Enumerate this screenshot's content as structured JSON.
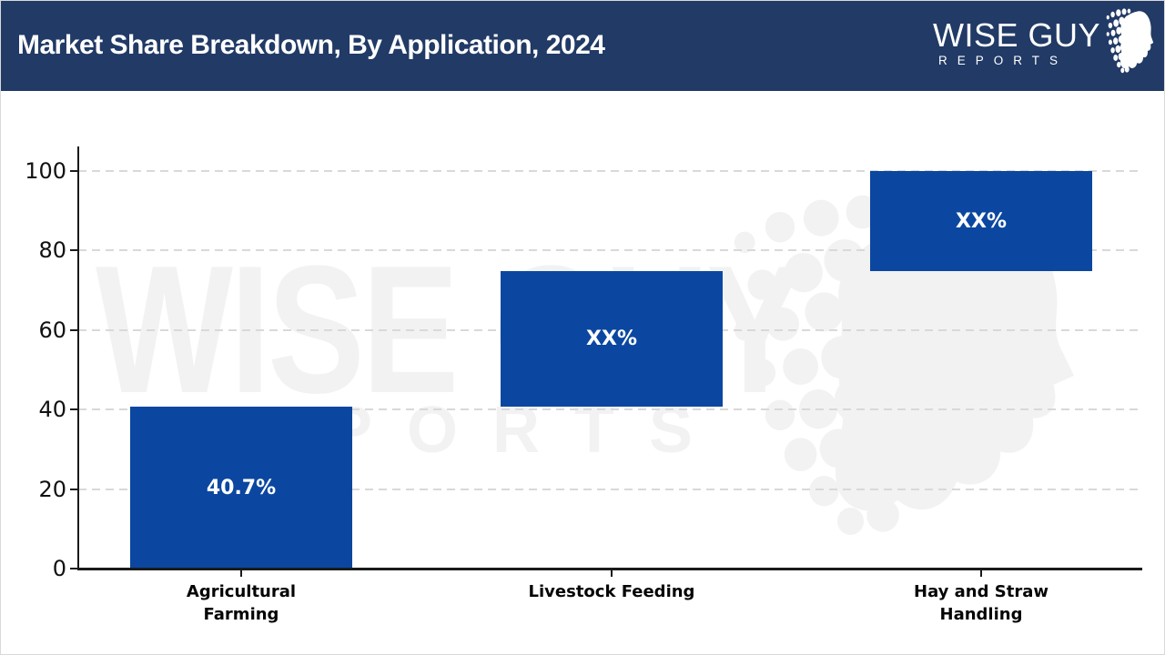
{
  "header": {
    "title": "Market Share Breakdown, By Application, 2024",
    "bg_color": "#213a66",
    "logo": {
      "line1": "WISE GUY",
      "line2": "REPORTS"
    }
  },
  "watermark": {
    "line1": "WISE GUY",
    "line2": "REPORTS"
  },
  "chart_data": {
    "type": "bar",
    "subtype": "floating-waterfall-segments",
    "title": "Market Share Breakdown, By Application, 2024",
    "categories": [
      "Agricultural\nFarming",
      "Livestock Feeding",
      "Hay and Straw\nHandling"
    ],
    "segments": [
      {
        "category": "Agricultural Farming",
        "start": 0,
        "end": 40.7,
        "label": "40.7%"
      },
      {
        "category": "Livestock Feeding",
        "start": 40.7,
        "end": 74.8,
        "label": "XX%"
      },
      {
        "category": "Hay and Straw Handling",
        "start": 74.8,
        "end": 100,
        "label": "XX%"
      }
    ],
    "xlabel": "",
    "ylabel": "",
    "ylim": [
      0,
      100
    ],
    "yticks": [
      0,
      20,
      40,
      60,
      80,
      100
    ],
    "grid": "horizontal-dashed",
    "legend": "none",
    "bar_color": "#0b47a0",
    "bar_label_color": "#ffffff"
  }
}
